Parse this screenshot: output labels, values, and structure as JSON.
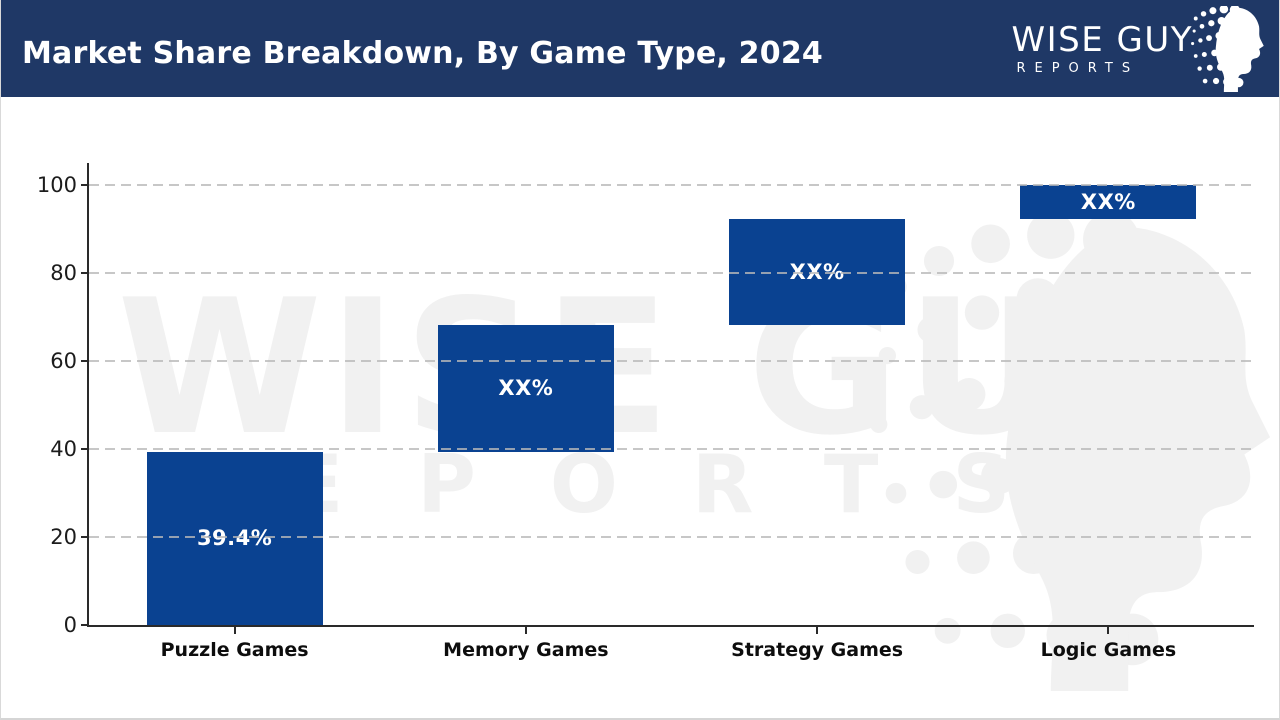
{
  "header": {
    "title": "Market Share Breakdown, By Game Type, 2024",
    "logo": {
      "line1": "WISE GUY",
      "line2": "REPORTS",
      "icon": "wiseguy-face-icon"
    }
  },
  "watermark": {
    "line1": "WISE GUY",
    "line2": "REPORTS"
  },
  "colors": {
    "header_bg": "#1F3866",
    "bar": "#0A4291",
    "grid": "#BBBBBB",
    "axis": "#2A2A2A",
    "bar_label": "#FFFFFF",
    "watermark": "#F1F1F1"
  },
  "chart_data": {
    "type": "bar",
    "subtype": "waterfall",
    "title": "Market Share Breakdown, By Game Type, 2024",
    "xlabel": "",
    "ylabel": "",
    "categories": [
      "Puzzle Games",
      "Memory Games",
      "Strategy Games",
      "Logic Games"
    ],
    "segments": [
      {
        "category": "Puzzle Games",
        "start": 0,
        "end": 39.4,
        "value": 39.4,
        "label": "39.4%"
      },
      {
        "category": "Memory Games",
        "start": 39.4,
        "end": 68.2,
        "value": 28.8,
        "label": "XX%"
      },
      {
        "category": "Strategy Games",
        "start": 68.2,
        "end": 92.3,
        "value": 24.1,
        "label": "XX%"
      },
      {
        "category": "Logic Games",
        "start": 92.3,
        "end": 100,
        "value": 7.7,
        "label": "XX%"
      }
    ],
    "ylim": [
      0,
      105
    ],
    "yticks": [
      0,
      20,
      40,
      60,
      80,
      100
    ],
    "grid": "horizontal-dashed-over-bars",
    "legend": false
  }
}
